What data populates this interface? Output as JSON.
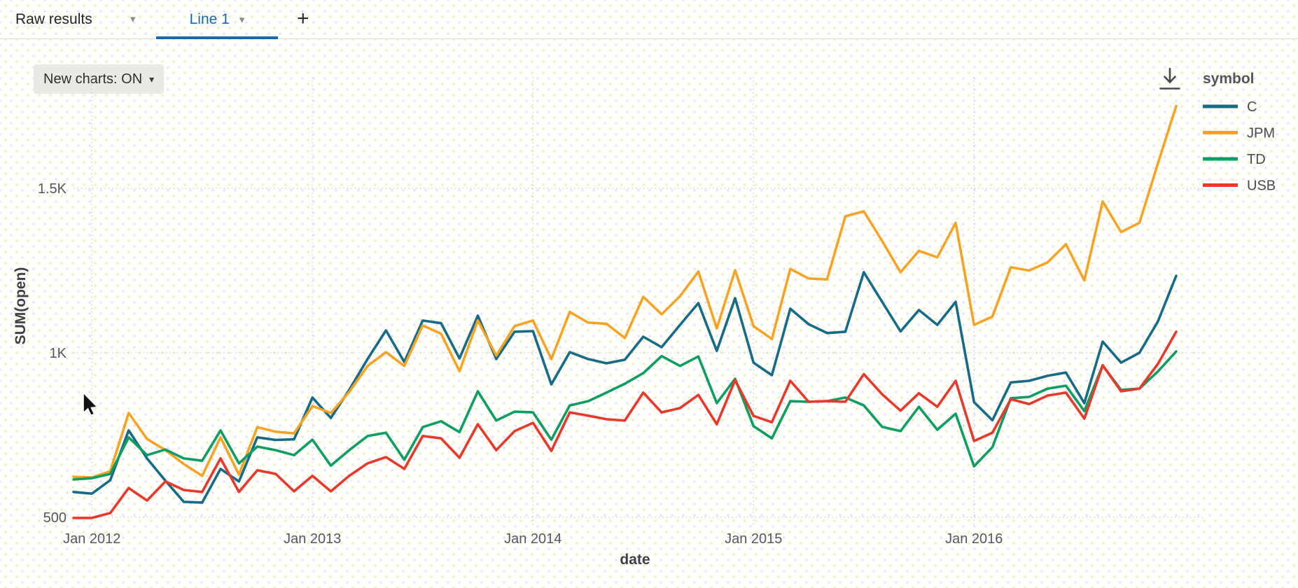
{
  "tabbar": {
    "tabs": [
      {
        "label": "Raw results",
        "active": false
      },
      {
        "label": "Line 1",
        "active": true
      }
    ],
    "add_tab_label": "+"
  },
  "toolbar": {
    "new_charts_label": "New charts: ON"
  },
  "colors": {
    "accent_blue": "#1d68a8",
    "tab_text": "#242424",
    "grid": "#c9c6da",
    "tick_text": "#57575c",
    "axis_title_text": "#3f3f44",
    "legend_text": "#4a4a4f",
    "download_icon": "#4a4a4a"
  },
  "chart_data": {
    "type": "line",
    "title": "",
    "xlabel": "date",
    "ylabel": "SUM(open)",
    "legend_title": "symbol",
    "legend_position": "top-right",
    "grid": "dotted",
    "x_start": "2011-12",
    "x_interval": "month",
    "n_points": 61,
    "ylim": [
      450,
      1800
    ],
    "x_ticks": [
      {
        "label": "Jan 2012",
        "index": 1
      },
      {
        "label": "Jan 2013",
        "index": 13
      },
      {
        "label": "Jan 2014",
        "index": 25
      },
      {
        "label": "Jan 2015",
        "index": 37
      },
      {
        "label": "Jan 2016",
        "index": 49
      }
    ],
    "y_ticks": [
      {
        "label": "500",
        "value": 500
      },
      {
        "label": "1K",
        "value": 1000
      },
      {
        "label": "1.5K",
        "value": 1500
      }
    ],
    "series": [
      {
        "name": "C",
        "color": "#186b85",
        "values": [
          577,
          572,
          613,
          764,
          679,
          611,
          547,
          545,
          647,
          609,
          743,
          735,
          737,
          864,
          802,
          887,
          981,
          1068,
          972,
          1098,
          1090,
          983,
          1113,
          981,
          1064,
          1066,
          904,
          1002,
          981,
          968,
          979,
          1049,
          1017,
          1085,
          1151,
          1006,
          1166,
          970,
          932,
          1134,
          1087,
          1060,
          1064,
          1245,
          1155,
          1065,
          1130,
          1085,
          1155,
          850,
          795,
          910,
          915,
          930,
          940,
          847,
          1034,
          970,
          1000,
          1095,
          1234
        ]
      },
      {
        "name": "JPM",
        "color": "#f6a426",
        "values": [
          623,
          621,
          640,
          817,
          738,
          704,
          662,
          626,
          743,
          630,
          774,
          760,
          755,
          838,
          817,
          881,
          960,
          1002,
          960,
          1083,
          1058,
          944,
          1098,
          992,
          1081,
          1098,
          981,
          1124,
          1092,
          1088,
          1045,
          1170,
          1117,
          1172,
          1247,
          1074,
          1251,
          1081,
          1042,
          1255,
          1226,
          1223,
          1415,
          1430,
          1340,
          1245,
          1310,
          1290,
          1395,
          1085,
          1110,
          1260,
          1250,
          1275,
          1330,
          1220,
          1460,
          1367,
          1395,
          1575,
          1750
        ]
      },
      {
        "name": "TD",
        "color": "#0e9d63",
        "values": [
          615,
          619,
          632,
          743,
          689,
          706,
          679,
          672,
          764,
          664,
          715,
          704,
          689,
          736,
          657,
          704,
          747,
          757,
          675,
          774,
          792,
          759,
          883,
          794,
          821,
          819,
          736,
          840,
          853,
          879,
          906,
          938,
          990,
          960,
          989,
          847,
          921,
          777,
          740,
          853,
          851,
          853,
          864,
          840,
          775,
          762,
          836,
          766,
          815,
          655,
          713,
          862,
          866,
          891,
          900,
          823,
          962,
          887,
          891,
          943,
          1004
        ]
      },
      {
        "name": "USB",
        "color": "#e8392d",
        "values": [
          498,
          498,
          513,
          589,
          551,
          609,
          583,
          577,
          679,
          577,
          643,
          632,
          579,
          626,
          579,
          626,
          664,
          683,
          647,
          747,
          740,
          681,
          783,
          704,
          762,
          787,
          702,
          819,
          809,
          798,
          794,
          879,
          819,
          832,
          872,
          783,
          917,
          808,
          789,
          915,
          851,
          853,
          851,
          935,
          874,
          824,
          877,
          836,
          915,
          732,
          757,
          859,
          844,
          870,
          879,
          800,
          962,
          883,
          891,
          966,
          1064
        ]
      }
    ]
  }
}
